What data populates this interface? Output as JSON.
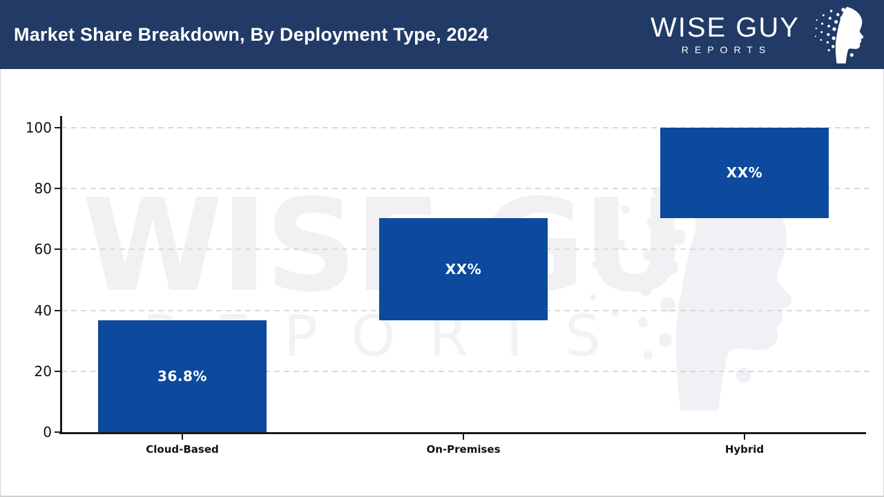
{
  "header": {
    "title": "Market Share Breakdown, By Deployment Type, 2024",
    "logo": {
      "line1": "WISE GUY",
      "line2": "REPORTS"
    }
  },
  "watermark": {
    "line1": "WISE GUY",
    "line2": "REPORTS"
  },
  "chart_data": {
    "type": "bar",
    "subtype": "waterfall",
    "title": "Market Share Breakdown, By Deployment Type, 2024",
    "categories": [
      "Cloud-Based",
      "On-Premises",
      "Hybrid"
    ],
    "segments": [
      {
        "category": "Cloud-Based",
        "start": 0,
        "end": 36.8,
        "label": "36.8%"
      },
      {
        "category": "On-Premises",
        "start": 36.8,
        "end": 70.4,
        "label": "XX%"
      },
      {
        "category": "Hybrid",
        "start": 70.4,
        "end": 100,
        "label": "XX%"
      }
    ],
    "yticks": [
      0,
      20,
      40,
      60,
      80,
      100
    ],
    "ylim": [
      0,
      104
    ],
    "grid": "dashed-horizontal",
    "legend": "none",
    "bar_color": "#0d4a9e",
    "bar_label_color": "#ffffff",
    "axis_color": "#1a1a1a",
    "grid_color": "#d9d9d9",
    "header_bg": "#213a66",
    "watermark_color": "#f1f1f4"
  }
}
